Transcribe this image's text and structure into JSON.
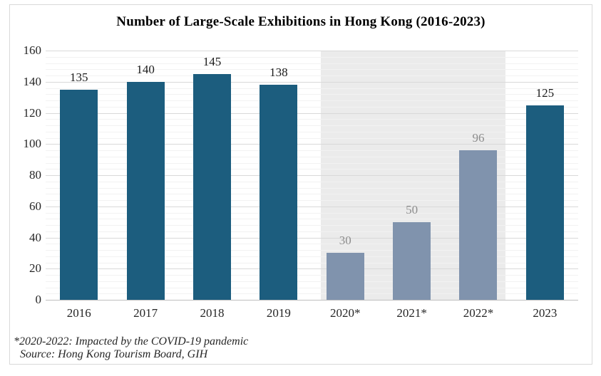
{
  "title": "Number of Large-Scale Exhibitions in Hong Kong (2016-2023)",
  "footnote": {
    "line1": "*2020-2022: Impacted by the COVID-19 pandemic",
    "line2": "Source: Hong Kong Tourism Board, GIH"
  },
  "chart_data": {
    "type": "bar",
    "title": "Number of Large-Scale Exhibitions in Hong Kong (2016-2023)",
    "categories": [
      "2016",
      "2017",
      "2018",
      "2019",
      "2020*",
      "2021*",
      "2022*",
      "2023"
    ],
    "values": [
      135,
      140,
      145,
      138,
      30,
      50,
      96,
      125
    ],
    "data_labels": [
      "135",
      "140",
      "145",
      "138",
      "30",
      "50",
      "96",
      "125"
    ],
    "xlabel": "",
    "ylabel": "",
    "ylim": [
      0,
      160
    ],
    "y_major_ticks": [
      0,
      20,
      40,
      60,
      80,
      100,
      120,
      140,
      160
    ],
    "y_minor_unit": 4,
    "grid": "horizontal major and minor gridlines",
    "legend": "none",
    "bar_colors": [
      "#1C5D7E",
      "#1C5D7E",
      "#1C5D7E",
      "#1C5D7E",
      "#8093AD",
      "#8093AD",
      "#8093AD",
      "#1C5D7E"
    ],
    "value_label_colors": [
      "#1A1A1A",
      "#1A1A1A",
      "#1A1A1A",
      "#1A1A1A",
      "#8C8C8C",
      "#8C8C8C",
      "#8C8C8C",
      "#1A1A1A"
    ],
    "highlight_region": {
      "start_index": 4,
      "end_index": 6,
      "color": "#EBEBEB"
    }
  },
  "colors": {
    "bar_dark": "#1C5D7E",
    "bar_muted": "#8093AD",
    "highlight_background": "#EBEBEB",
    "gridline_major": "#D9D9D9",
    "gridline_minor": "#F2F2F2",
    "axis_line": "#BFBFBF",
    "chart_border": "#D9D9D9",
    "value_label_dark": "#1A1A1A",
    "value_label_gray": "#8C8C8C"
  }
}
